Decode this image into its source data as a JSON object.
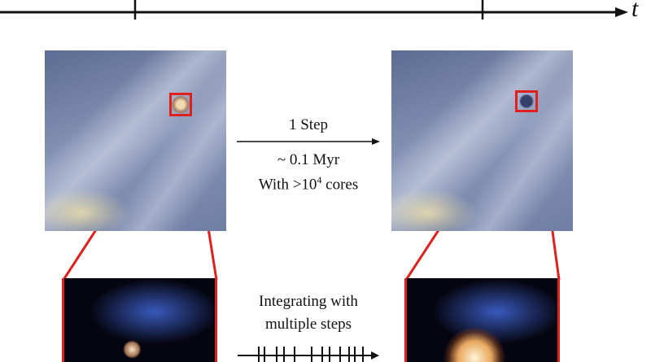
{
  "timeline": {
    "axis_label": "t"
  },
  "top_arrow": {
    "label": "1 Step",
    "detail_line1": "~ 0.1 Myr",
    "detail_line2_prefix": "With >10",
    "detail_line2_sup": "4",
    "detail_line2_suffix": " cores"
  },
  "bottom_arrow": {
    "line1": "Integrating with",
    "line2": "multiple steps"
  },
  "colors": {
    "highlight": "#e0201c",
    "axis": "#111111"
  }
}
